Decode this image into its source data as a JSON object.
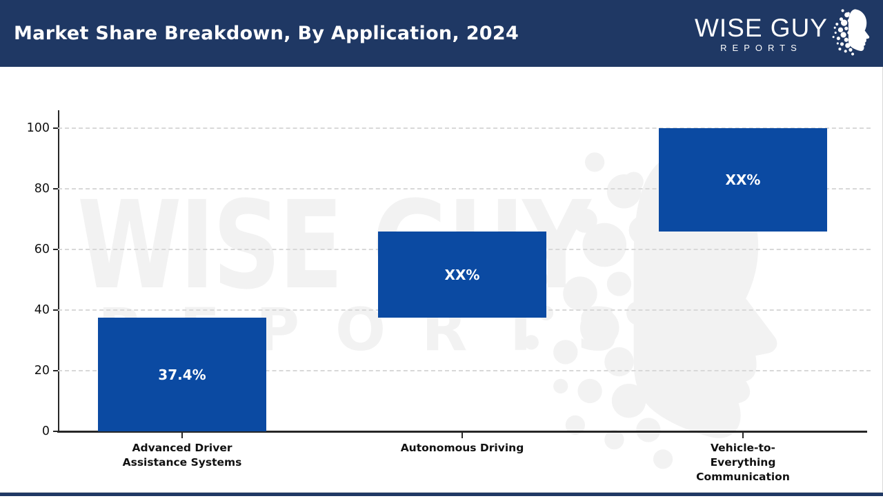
{
  "header": {
    "title": "Market Share Breakdown, By Application, 2024",
    "logo": {
      "line1": "WISE GUY",
      "line2": "REPORTS"
    }
  },
  "watermark": {
    "line1": "WISE GUY",
    "line2": "REPORTS"
  },
  "chart_data": {
    "type": "bar",
    "subtype": "waterfall-stacked-percentage",
    "title": "Market Share Breakdown, By Application, 2024",
    "xlabel": "",
    "ylabel": "",
    "ylim": [
      0,
      100
    ],
    "yticks": [
      0,
      20,
      40,
      60,
      80,
      100
    ],
    "grid": "horizontal-dashed",
    "legend": "none",
    "categories": [
      {
        "name": "Advanced Driver Assistance Systems",
        "lines": [
          "Advanced Driver",
          "Assistance Systems"
        ]
      },
      {
        "name": "Autonomous Driving",
        "lines": [
          "Autonomous Driving"
        ]
      },
      {
        "name": "Vehicle-to-Everything Communication",
        "lines": [
          "Vehicle-to-",
          "Everything",
          "Communication"
        ]
      }
    ],
    "segments": [
      {
        "category": "Advanced Driver Assistance Systems",
        "start": 0,
        "end": 37.4,
        "label": "37.4%"
      },
      {
        "category": "Autonomous Driving",
        "start": 37.4,
        "end": 66,
        "label": "XX%"
      },
      {
        "category": "Vehicle-to-Everything Communication",
        "start": 66,
        "end": 100,
        "label": "XX%"
      }
    ]
  },
  "colors": {
    "header_navy": "#1f3864",
    "bar_blue": "#0b4aa2",
    "gridline": "#d8d8d8",
    "axis": "#262626",
    "watermark": "#f2f2f2"
  }
}
